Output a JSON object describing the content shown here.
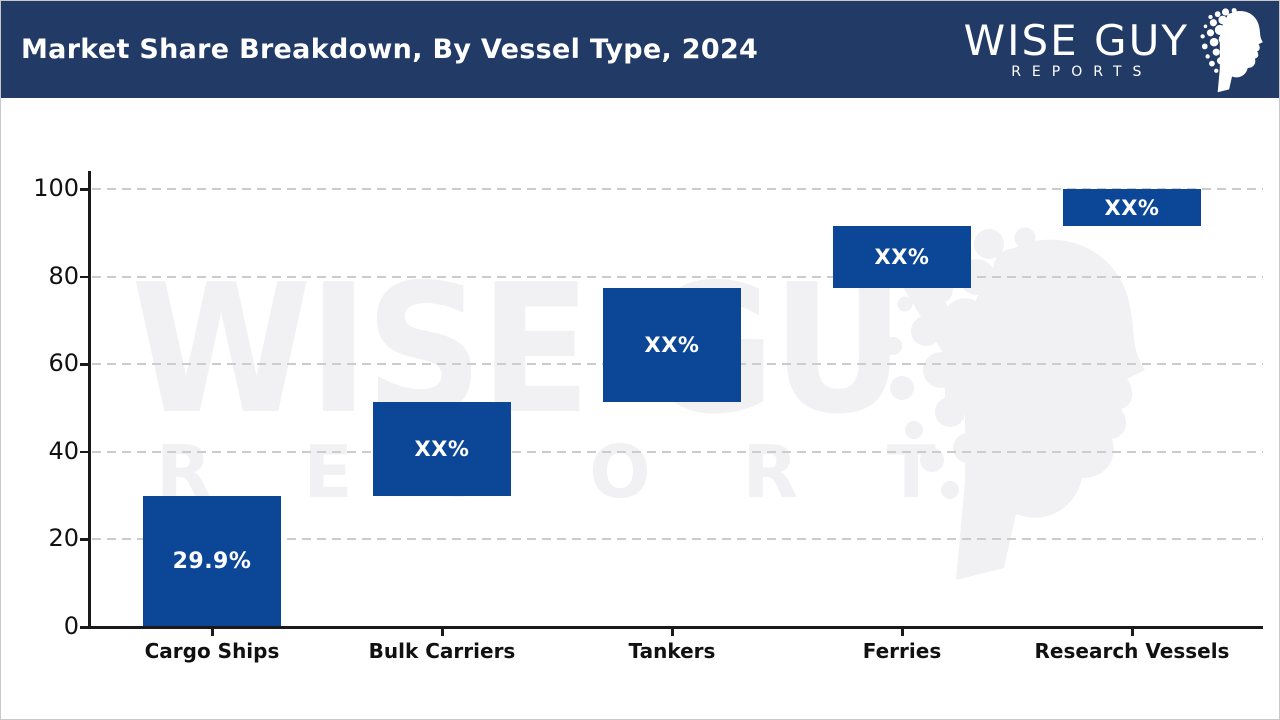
{
  "header": {
    "title": "Market Share Breakdown, By Vessel Type, 2024",
    "bg_color": "#213A66",
    "logo": {
      "line1": "WISE GUY",
      "line2": "REPORTS"
    }
  },
  "watermark": {
    "line1": "WISE GUY",
    "line2": "REPORTS"
  },
  "chart_data": {
    "type": "bar",
    "subtype": "waterfall",
    "title": "",
    "xlabel": "",
    "ylabel": "",
    "categories": [
      "Cargo Ships",
      "Bulk Carriers",
      "Tankers",
      "Ferries",
      "Research Vessels"
    ],
    "segments": [
      {
        "category": "Cargo Ships",
        "start": 0,
        "end": 29.9,
        "value": 29.9,
        "label": "29.9%"
      },
      {
        "category": "Bulk Carriers",
        "start": 29.9,
        "end": 51.4,
        "value": 21.5,
        "label": "XX%"
      },
      {
        "category": "Tankers",
        "start": 51.4,
        "end": 77.4,
        "value": 26.0,
        "label": "XX%"
      },
      {
        "category": "Ferries",
        "start": 77.4,
        "end": 91.5,
        "value": 14.1,
        "label": "XX%"
      },
      {
        "category": "Research Vessels",
        "start": 91.5,
        "end": 100,
        "value": 8.5,
        "label": "XX%"
      }
    ],
    "y_ticks": [
      0,
      20,
      40,
      60,
      80,
      100
    ],
    "ylim": [
      0,
      100
    ],
    "grid": "horizontal dashed",
    "legend": "none",
    "bar_color": "#0B4697",
    "bar_label_color": "#FFFFFF",
    "axis_color": "#1a1a1a",
    "gridline_color": "#cccccc"
  }
}
